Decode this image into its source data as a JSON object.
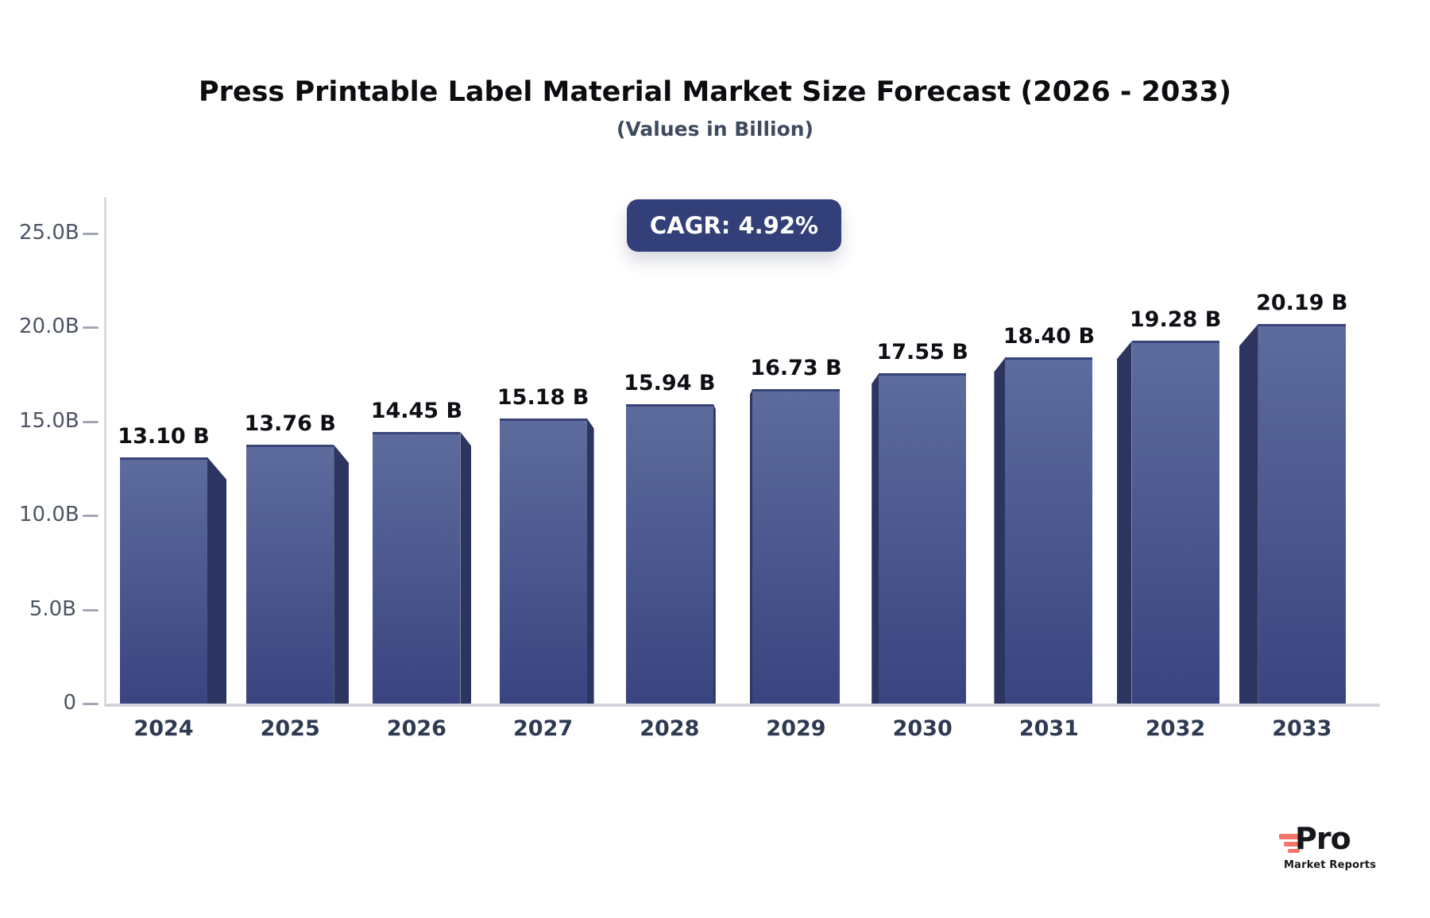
{
  "header": {
    "title": "Press Printable Label Material Market Size Forecast (2026 - 2033)",
    "subtitle": "(Values in Billion)"
  },
  "badge": {
    "label": "CAGR: 4.92%",
    "bg_color": "#323f78",
    "text_color": "#ffffff"
  },
  "chart_data": {
    "type": "bar",
    "title": "Press Printable Label Material Market Size Forecast (2026 - 2033)",
    "subtitle": "(Values in Billion)",
    "annotation": "CAGR: 4.92%",
    "categories": [
      "2024",
      "2025",
      "2026",
      "2027",
      "2028",
      "2029",
      "2030",
      "2031",
      "2032",
      "2033"
    ],
    "values": [
      13.1,
      13.76,
      14.45,
      15.18,
      15.94,
      16.73,
      17.55,
      18.4,
      19.28,
      20.19
    ],
    "value_labels": [
      "13.10 B",
      "13.76 B",
      "14.45 B",
      "15.18 B",
      "15.94 B",
      "16.73 B",
      "17.55 B",
      "18.40 B",
      "19.28 B",
      "20.19 B"
    ],
    "unit": "Billion",
    "xlabel": "",
    "ylabel": "",
    "ylim": [
      0,
      25
    ],
    "yticks": [
      {
        "value": 0,
        "label": "0"
      },
      {
        "value": 5,
        "label": "5.0B"
      },
      {
        "value": 10,
        "label": "10.0B"
      },
      {
        "value": 15,
        "label": "15.0B"
      },
      {
        "value": 20,
        "label": "20.0B"
      },
      {
        "value": 25,
        "label": "25.0B"
      }
    ],
    "grid": false,
    "legend": false,
    "bar_style": {
      "face_top_color": "#5d6b9d",
      "face_bottom_color": "#3a4480",
      "side_color": "#2c355f",
      "top_edge_color": "#3a4377"
    },
    "axis_color": "#d2d5db",
    "tick_label_color": "#4d5463"
  },
  "logo": {
    "name": "Pro",
    "subtext": "Market Reports",
    "accent_color": "#f4756a"
  }
}
